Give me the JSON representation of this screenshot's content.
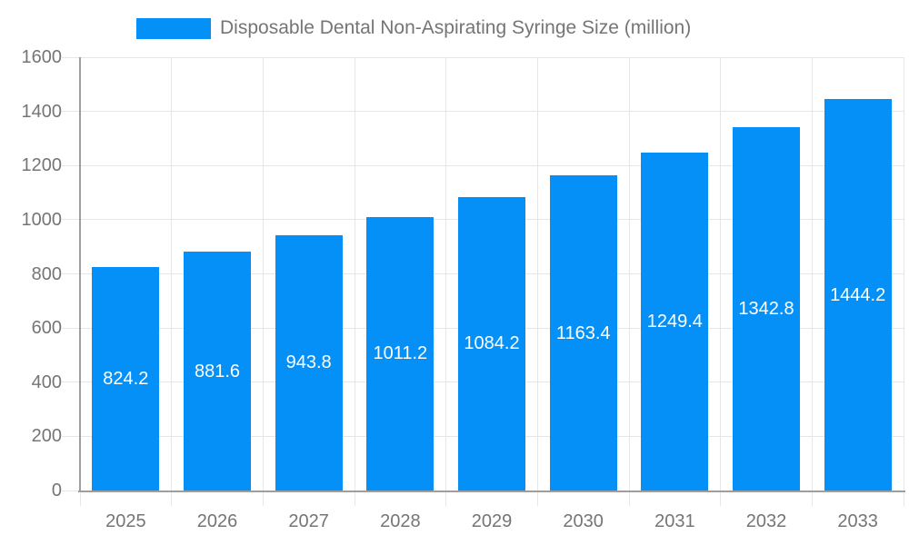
{
  "chart_data": {
    "type": "bar",
    "title": "Disposable Dental Non-Aspirating Syringe Size (million)",
    "categories": [
      "2025",
      "2026",
      "2027",
      "2028",
      "2029",
      "2030",
      "2031",
      "2032",
      "2033"
    ],
    "values": [
      824.2,
      881.6,
      943.8,
      1011.2,
      1084.2,
      1163.4,
      1249.4,
      1342.8,
      1444.2
    ],
    "value_labels": [
      "824.2",
      "881.6",
      "943.8",
      "1011.2",
      "1084.2",
      "1163.4",
      "1249.4",
      "1342.8",
      "1444.2"
    ],
    "xlabel": "",
    "ylabel": "",
    "ylim": [
      0,
      1600
    ],
    "ytick_step": 200,
    "yticks": [
      "0",
      "200",
      "400",
      "600",
      "800",
      "1000",
      "1200",
      "1400",
      "1600"
    ],
    "grid": true,
    "legend_position": "top",
    "value_label_position": "inside-middle"
  },
  "colors": {
    "bar": "#0590f8",
    "grid": "#e6e6e6",
    "axis": "#9e9e9e",
    "tick_text": "#757575",
    "legend_text": "#757575",
    "value_text": "#ffffff",
    "background": "#ffffff"
  }
}
